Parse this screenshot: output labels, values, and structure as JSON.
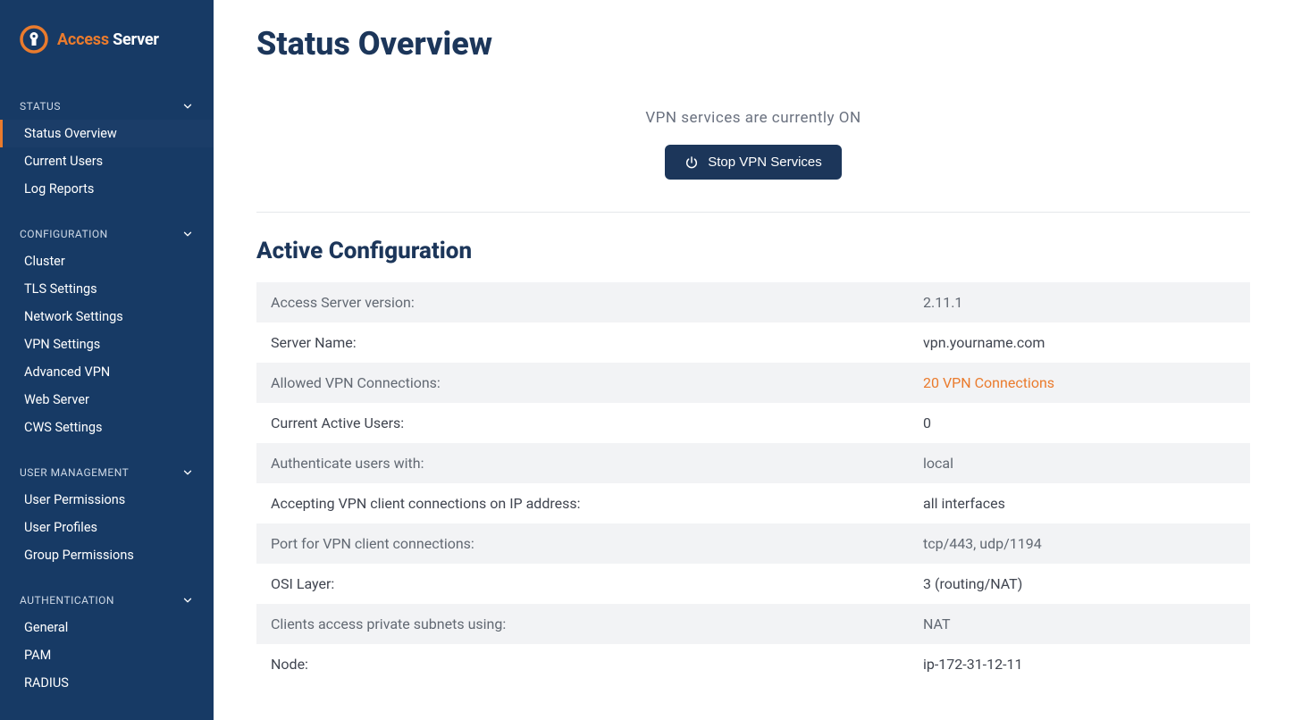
{
  "brand": {
    "name_accent": "Access",
    "name_rest": " Server",
    "accent_color": "#ea7b2d",
    "sidebar_bg": "#173a65"
  },
  "sidebar": {
    "sections": [
      {
        "title": "STATUS",
        "items": [
          {
            "label": "Status Overview",
            "active": true
          },
          {
            "label": "Current Users",
            "active": false
          },
          {
            "label": "Log Reports",
            "active": false
          }
        ]
      },
      {
        "title": "CONFIGURATION",
        "items": [
          {
            "label": "Cluster",
            "active": false
          },
          {
            "label": "TLS Settings",
            "active": false
          },
          {
            "label": "Network Settings",
            "active": false
          },
          {
            "label": "VPN Settings",
            "active": false
          },
          {
            "label": "Advanced VPN",
            "active": false
          },
          {
            "label": "Web Server",
            "active": false
          },
          {
            "label": "CWS Settings",
            "active": false
          }
        ]
      },
      {
        "title": "USER MANAGEMENT",
        "items": [
          {
            "label": "User Permissions",
            "active": false
          },
          {
            "label": "User Profiles",
            "active": false
          },
          {
            "label": "Group Permissions",
            "active": false
          }
        ]
      },
      {
        "title": "AUTHENTICATION",
        "items": [
          {
            "label": "General",
            "active": false
          },
          {
            "label": "PAM",
            "active": false
          },
          {
            "label": "RADIUS",
            "active": false
          }
        ]
      }
    ]
  },
  "page": {
    "title": "Status Overview",
    "status_text": "VPN services are currently ON",
    "stop_button_label": "Stop VPN Services",
    "active_config_title": "Active Configuration"
  },
  "config": {
    "rows": [
      {
        "label": "Access Server version:",
        "value": "2.11.1",
        "link": false
      },
      {
        "label": "Server Name:",
        "value": "vpn.yourname.com",
        "link": false
      },
      {
        "label": "Allowed VPN Connections:",
        "value": "20 VPN Connections",
        "link": true
      },
      {
        "label": "Current Active Users:",
        "value": "0",
        "link": false
      },
      {
        "label": "Authenticate users with:",
        "value": "local",
        "link": false
      },
      {
        "label": "Accepting VPN client connections on IP address:",
        "value": "all interfaces",
        "link": false
      },
      {
        "label": "Port for VPN client connections:",
        "value": "tcp/443, udp/1194",
        "link": false
      },
      {
        "label": "OSI Layer:",
        "value": "3 (routing/NAT)",
        "link": false
      },
      {
        "label": "Clients access private subnets using:",
        "value": "NAT",
        "link": false
      },
      {
        "label": "Node:",
        "value": "ip-172-31-12-11",
        "link": false
      }
    ]
  }
}
